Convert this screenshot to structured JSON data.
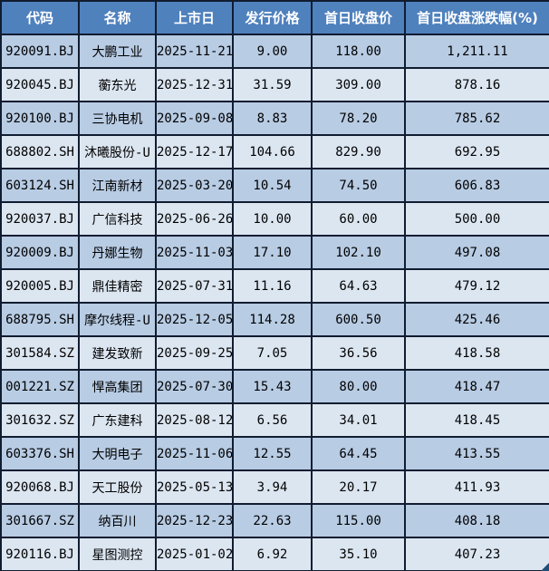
{
  "chart_data": {
    "type": "table",
    "columns": [
      "代码",
      "名称",
      "上市日",
      "发行价格",
      "首日收盘价",
      "首日收盘涨跌幅(%)"
    ],
    "rows": [
      [
        "920091.BJ",
        "大鹏工业",
        "2025-11-21",
        "9.00",
        "118.00",
        "1,211.11"
      ],
      [
        "920045.BJ",
        "蘅东光",
        "2025-12-31",
        "31.59",
        "309.00",
        "878.16"
      ],
      [
        "920100.BJ",
        "三协电机",
        "2025-09-08",
        "8.83",
        "78.20",
        "785.62"
      ],
      [
        "688802.SH",
        "沐曦股份-U",
        "2025-12-17",
        "104.66",
        "829.90",
        "692.95"
      ],
      [
        "603124.SH",
        "江南新材",
        "2025-03-20",
        "10.54",
        "74.50",
        "606.83"
      ],
      [
        "920037.BJ",
        "广信科技",
        "2025-06-26",
        "10.00",
        "60.00",
        "500.00"
      ],
      [
        "920009.BJ",
        "丹娜生物",
        "2025-11-03",
        "17.10",
        "102.10",
        "497.08"
      ],
      [
        "920005.BJ",
        "鼎佳精密",
        "2025-07-31",
        "11.16",
        "64.63",
        "479.12"
      ],
      [
        "688795.SH",
        "摩尔线程-U",
        "2025-12-05",
        "114.28",
        "600.50",
        "425.46"
      ],
      [
        "301584.SZ",
        "建发致新",
        "2025-09-25",
        "7.05",
        "36.56",
        "418.58"
      ],
      [
        "001221.SZ",
        "悍高集团",
        "2025-07-30",
        "15.43",
        "80.00",
        "418.47"
      ],
      [
        "301632.SZ",
        "广东建科",
        "2025-08-12",
        "6.56",
        "34.01",
        "418.45"
      ],
      [
        "603376.SH",
        "大明电子",
        "2025-11-06",
        "12.55",
        "64.45",
        "413.55"
      ],
      [
        "920068.BJ",
        "天工股份",
        "2025-05-13",
        "3.94",
        "20.17",
        "411.93"
      ],
      [
        "301667.SZ",
        "纳百川",
        "2025-12-23",
        "22.63",
        "115.00",
        "408.18"
      ],
      [
        "920116.BJ",
        "星图测控",
        "2025-01-02",
        "6.92",
        "35.10",
        "407.23"
      ]
    ],
    "title": "",
    "layout": {
      "banded_rows": true,
      "all_cells_centered": true
    }
  },
  "colors": {
    "header_bg": "#4f81bd",
    "header_text": "#ffffff",
    "row_band_dark": "#b8cce4",
    "row_band_light": "#dce6f1",
    "grid_border": "#101c30",
    "cell_text": "#000000",
    "corner_triangle": "#1f4e79"
  }
}
